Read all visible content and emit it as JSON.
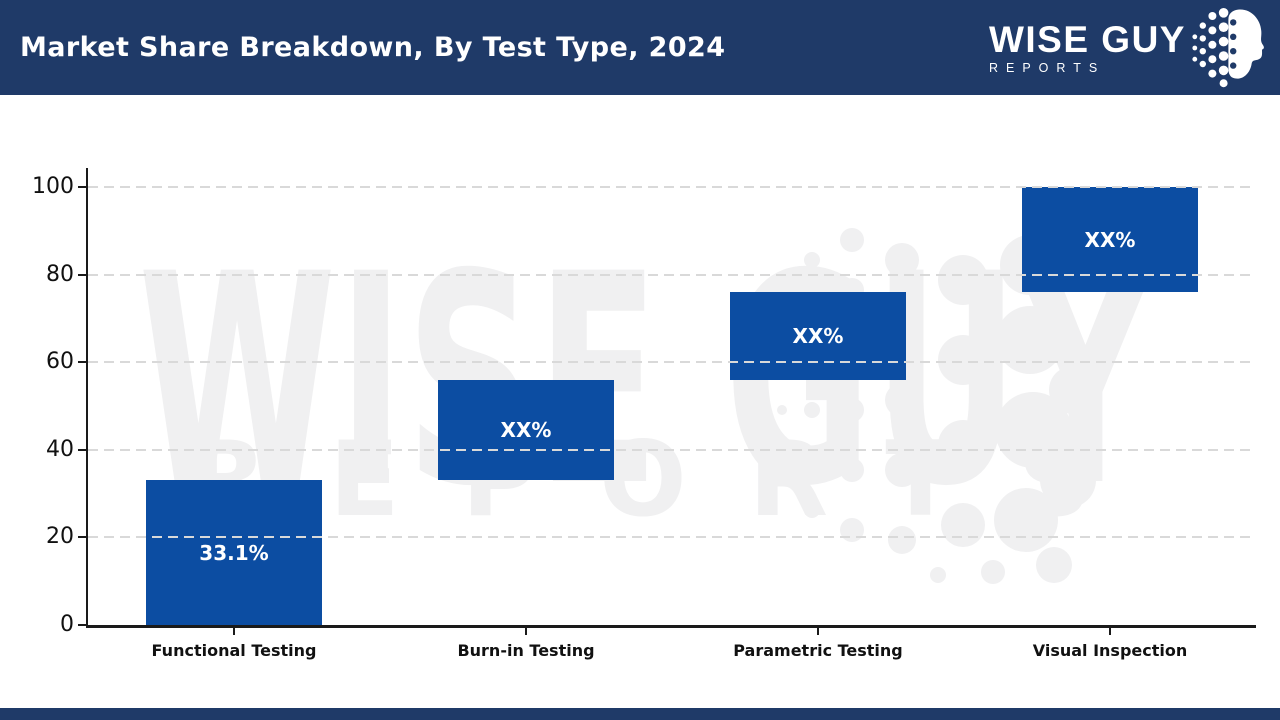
{
  "header": {
    "title": "Market Share Breakdown, By Test Type, 2024",
    "logo": {
      "line1": "WISE GUY",
      "line2": "REPORTS"
    }
  },
  "watermark": {
    "line1": "WISE GUY",
    "line2": "REPORTS"
  },
  "chart_data": {
    "type": "bar",
    "variant": "floating-waterfall",
    "title": "Market Share Breakdown, By Test Type, 2024",
    "categories": [
      "Functional Testing",
      "Burn-in Testing",
      "Parametric Testing",
      "Visual Inspection"
    ],
    "bars": [
      {
        "start": 0,
        "end": 33.1,
        "label": "33.1%"
      },
      {
        "start": 33.1,
        "end": 56,
        "label": "XX%"
      },
      {
        "start": 56,
        "end": 76,
        "label": "XX%"
      },
      {
        "start": 76,
        "end": 100,
        "label": "XX%"
      }
    ],
    "yticks": [
      0,
      20,
      40,
      60,
      80,
      100
    ],
    "ylim": [
      0,
      104
    ],
    "xlabel": "",
    "ylabel": "",
    "bar_color": "#0c4da2",
    "grid": {
      "horizontal": true,
      "style": "dashed",
      "color": "#d9d9d9",
      "above_bars": true
    },
    "legend": "none"
  },
  "colors": {
    "header_bg": "#1f3a68",
    "footer_bg": "#1f3a68",
    "title_text": "#ffffff",
    "bar": "#0c4da2",
    "value_text": "#ffffff",
    "grid": "#d9d9d9",
    "axis": "#1a1a1a",
    "tick_text": "#111111",
    "watermark": "#f0f0f1"
  }
}
